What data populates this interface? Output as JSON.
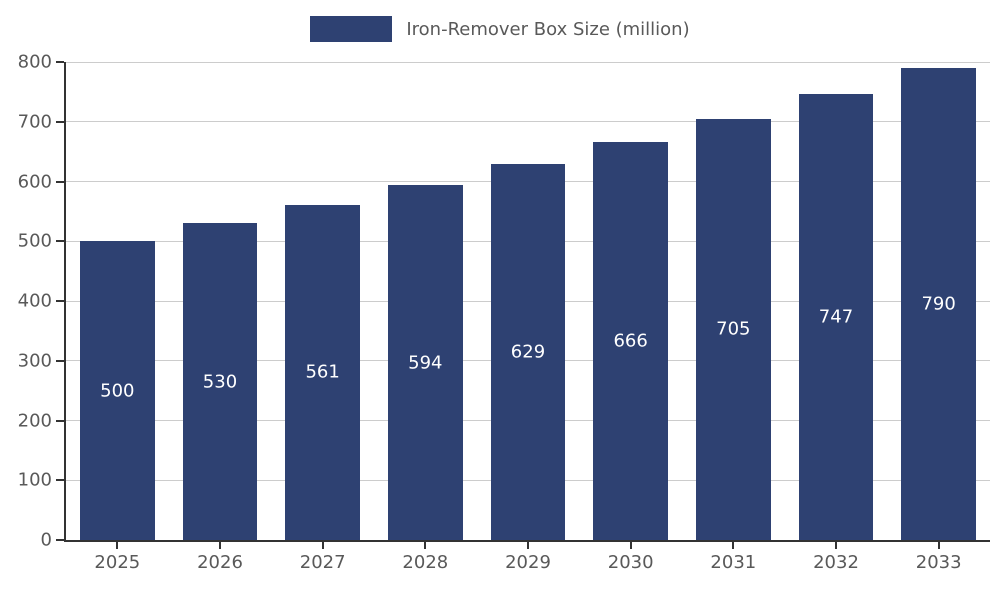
{
  "legend": {
    "label": "Iron-Remover Box Size (million)"
  },
  "colors": {
    "bar": "#2e4172",
    "axis": "#333333",
    "grid": "#cccccc",
    "tick_text": "#595959",
    "value_text": "#ffffff",
    "background": "#ffffff"
  },
  "chart_data": {
    "type": "bar",
    "title": "Iron-Remover Box Size (million)",
    "categories": [
      "2025",
      "2026",
      "2027",
      "2028",
      "2029",
      "2030",
      "2031",
      "2032",
      "2033"
    ],
    "values": [
      500,
      530,
      561,
      594,
      629,
      666,
      705,
      747,
      790
    ],
    "xlabel": "",
    "ylabel": "",
    "ylim": [
      0,
      800
    ],
    "ytick_interval": 100,
    "yticks": [
      0,
      100,
      200,
      300,
      400,
      500,
      600,
      700,
      800
    ],
    "grid": true,
    "legend_position": "top-center",
    "value_labels": "inside-middle"
  }
}
